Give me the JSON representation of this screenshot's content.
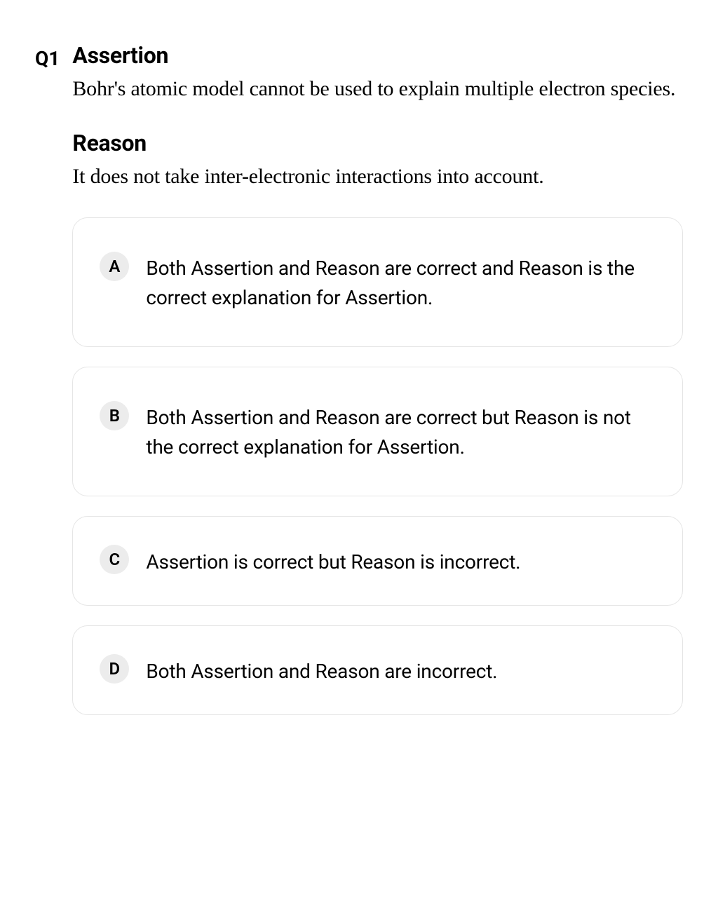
{
  "question": {
    "number": "Q1",
    "assertion_label": "Assertion",
    "assertion_text": "Bohr's atomic model cannot be used to explain multiple electron species.",
    "reason_label": "Reason",
    "reason_text": "It does not take inter-electronic interactions into account."
  },
  "options": [
    {
      "letter": "A",
      "text": "Both Assertion and Reason are correct and Reason is the correct explanation for Assertion."
    },
    {
      "letter": "B",
      "text": "Both Assertion and Reason are correct but Reason is not the correct explanation for Assertion."
    },
    {
      "letter": "C",
      "text": "Assertion is correct but Reason is incorrect."
    },
    {
      "letter": "D",
      "text": "Both Assertion and Reason are incorrect."
    }
  ],
  "styling": {
    "background_color": "#ffffff",
    "text_color": "#000000",
    "option_border_color": "#e5e5e5",
    "option_letter_bg": "#ececec",
    "heading_fontsize": 32,
    "body_fontsize": 30,
    "option_fontsize": 28,
    "qnum_fontsize": 28,
    "body_font_family": "Georgia serif",
    "ui_font_family": "sans-serif",
    "option_border_radius": 22
  }
}
